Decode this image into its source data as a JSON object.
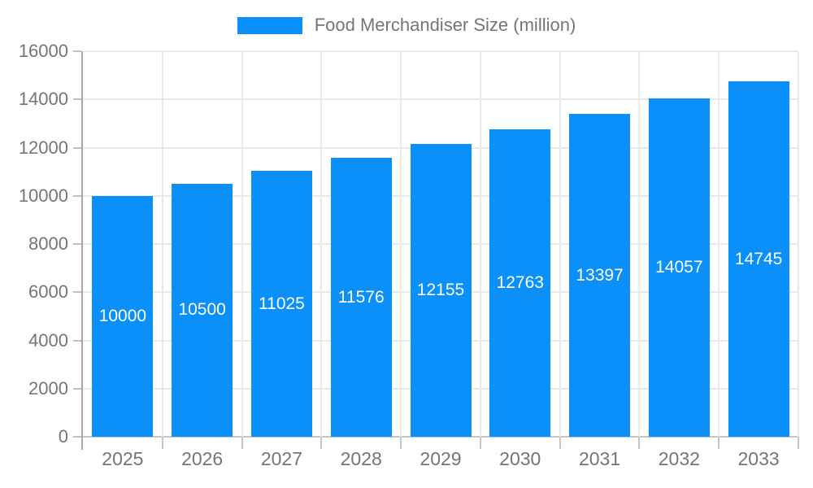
{
  "chart_data": {
    "type": "bar",
    "title": "Food Merchandiser Size (million)",
    "categories": [
      "2025",
      "2026",
      "2027",
      "2028",
      "2029",
      "2030",
      "2031",
      "2032",
      "2033"
    ],
    "values": [
      10000,
      10500,
      11025,
      11576,
      12155,
      12763,
      13397,
      14057,
      14745
    ],
    "value_labels": [
      "10000",
      "10500",
      "11025",
      "11576",
      "12155",
      "12763",
      "13397",
      "14057",
      "14745"
    ],
    "xlabel": "",
    "ylabel": "",
    "ylim": [
      0,
      16000
    ],
    "ytick_step": 2000,
    "ytick_labels": [
      "0",
      "2000",
      "4000",
      "6000",
      "8000",
      "10000",
      "12000",
      "14000",
      "16000"
    ],
    "grid": true,
    "legend_position": "top",
    "bar_color": "#0a90f8",
    "value_label_color": "#ffffff",
    "axis_label_color": "#757575"
  }
}
